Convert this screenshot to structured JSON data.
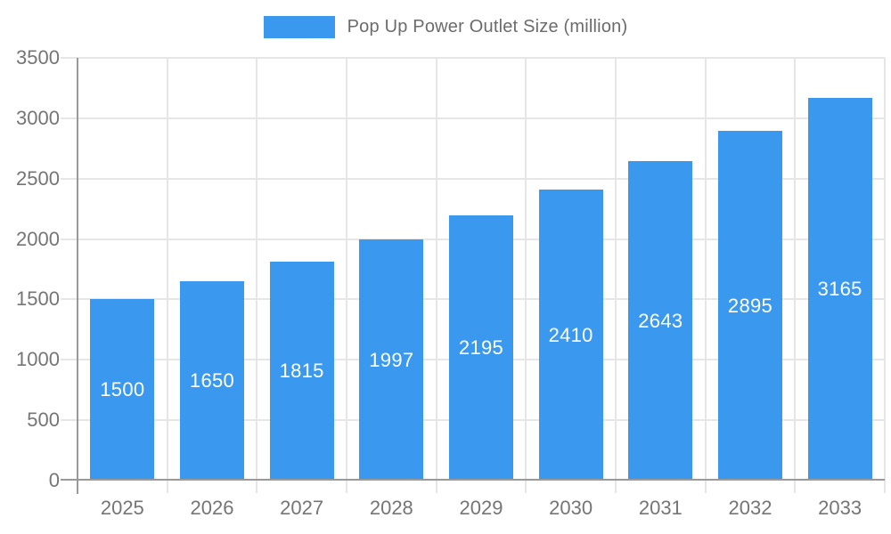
{
  "legend": {
    "label": "Pop Up Power Outlet Size (million)"
  },
  "chart_data": {
    "type": "bar",
    "title": "Pop Up Power Outlet Size (million)",
    "categories": [
      "2025",
      "2026",
      "2027",
      "2028",
      "2029",
      "2030",
      "2031",
      "2032",
      "2033"
    ],
    "values": [
      1500,
      1650,
      1815,
      1997,
      2195,
      2410,
      2643,
      2895,
      3165
    ],
    "xlabel": "",
    "ylabel": "",
    "ylim": [
      0,
      3500
    ],
    "ytick_step": 500,
    "grid": true,
    "legend_position": "top-center",
    "value_labels": "inside-center",
    "colors": {
      "bar": "#3A99EE",
      "value_label": "#FFFFFF",
      "axis": "#999999",
      "gridline": "#E6E6E6",
      "tick_label": "#757575",
      "legend_text": "#6B6B6B",
      "background": "#FFFFFF"
    }
  }
}
